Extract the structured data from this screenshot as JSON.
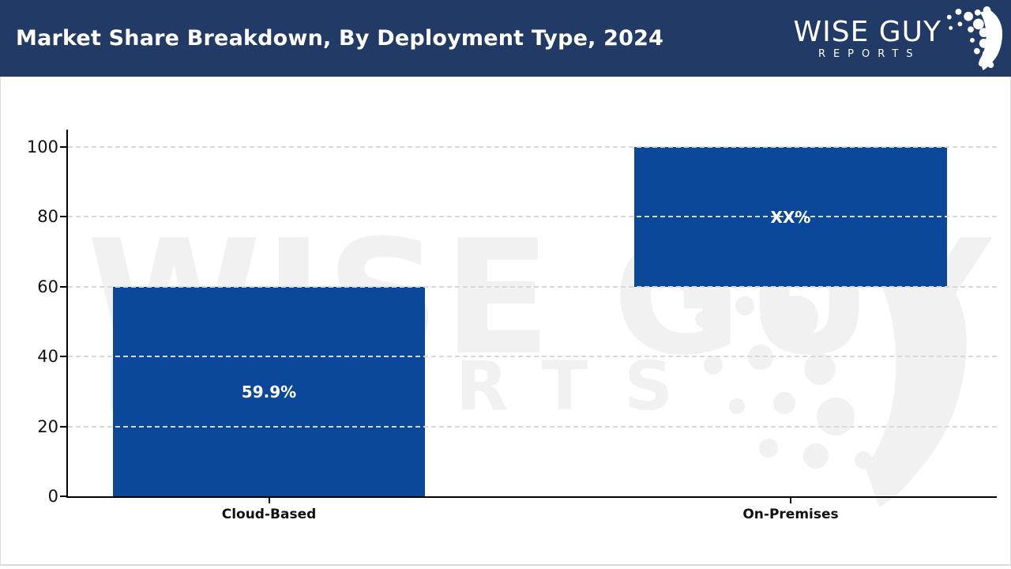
{
  "header": {
    "title": "Market Share Breakdown, By Deployment Type, 2024",
    "logo_line1": "WISE GUY",
    "logo_line2": "REPORTS"
  },
  "watermark": {
    "line1": "WISE GUY",
    "line2": "REPORTS"
  },
  "chart_data": {
    "type": "bar",
    "subtype": "waterfall",
    "title": "Market Share Breakdown, By Deployment Type, 2024",
    "categories": [
      "Cloud-Based",
      "On-Premises"
    ],
    "series": [
      {
        "name": "Market share (%)",
        "segments": [
          {
            "category": "Cloud-Based",
            "start": 0,
            "end": 59.9,
            "label": "59.9%"
          },
          {
            "category": "On-Premises",
            "start": 59.9,
            "end": 100,
            "label": "XX%"
          }
        ]
      }
    ],
    "xlabel": "",
    "ylabel": "",
    "ylim": [
      0,
      105
    ],
    "yticks": [
      0,
      20,
      40,
      60,
      80,
      100
    ],
    "grid": {
      "axis": "y",
      "style": "dashed"
    },
    "legend": "none",
    "colors": {
      "bar": "#0B4899",
      "bar_label": "#FFFFFF",
      "axis": "#000000",
      "grid": "#D8D8D8"
    }
  },
  "colors": {
    "header_bg": "#223A66",
    "header_text": "#FFFFFF",
    "body_bg": "#FFFFFF",
    "watermark": "#F1F1F1",
    "border": "#DCDCDC"
  }
}
